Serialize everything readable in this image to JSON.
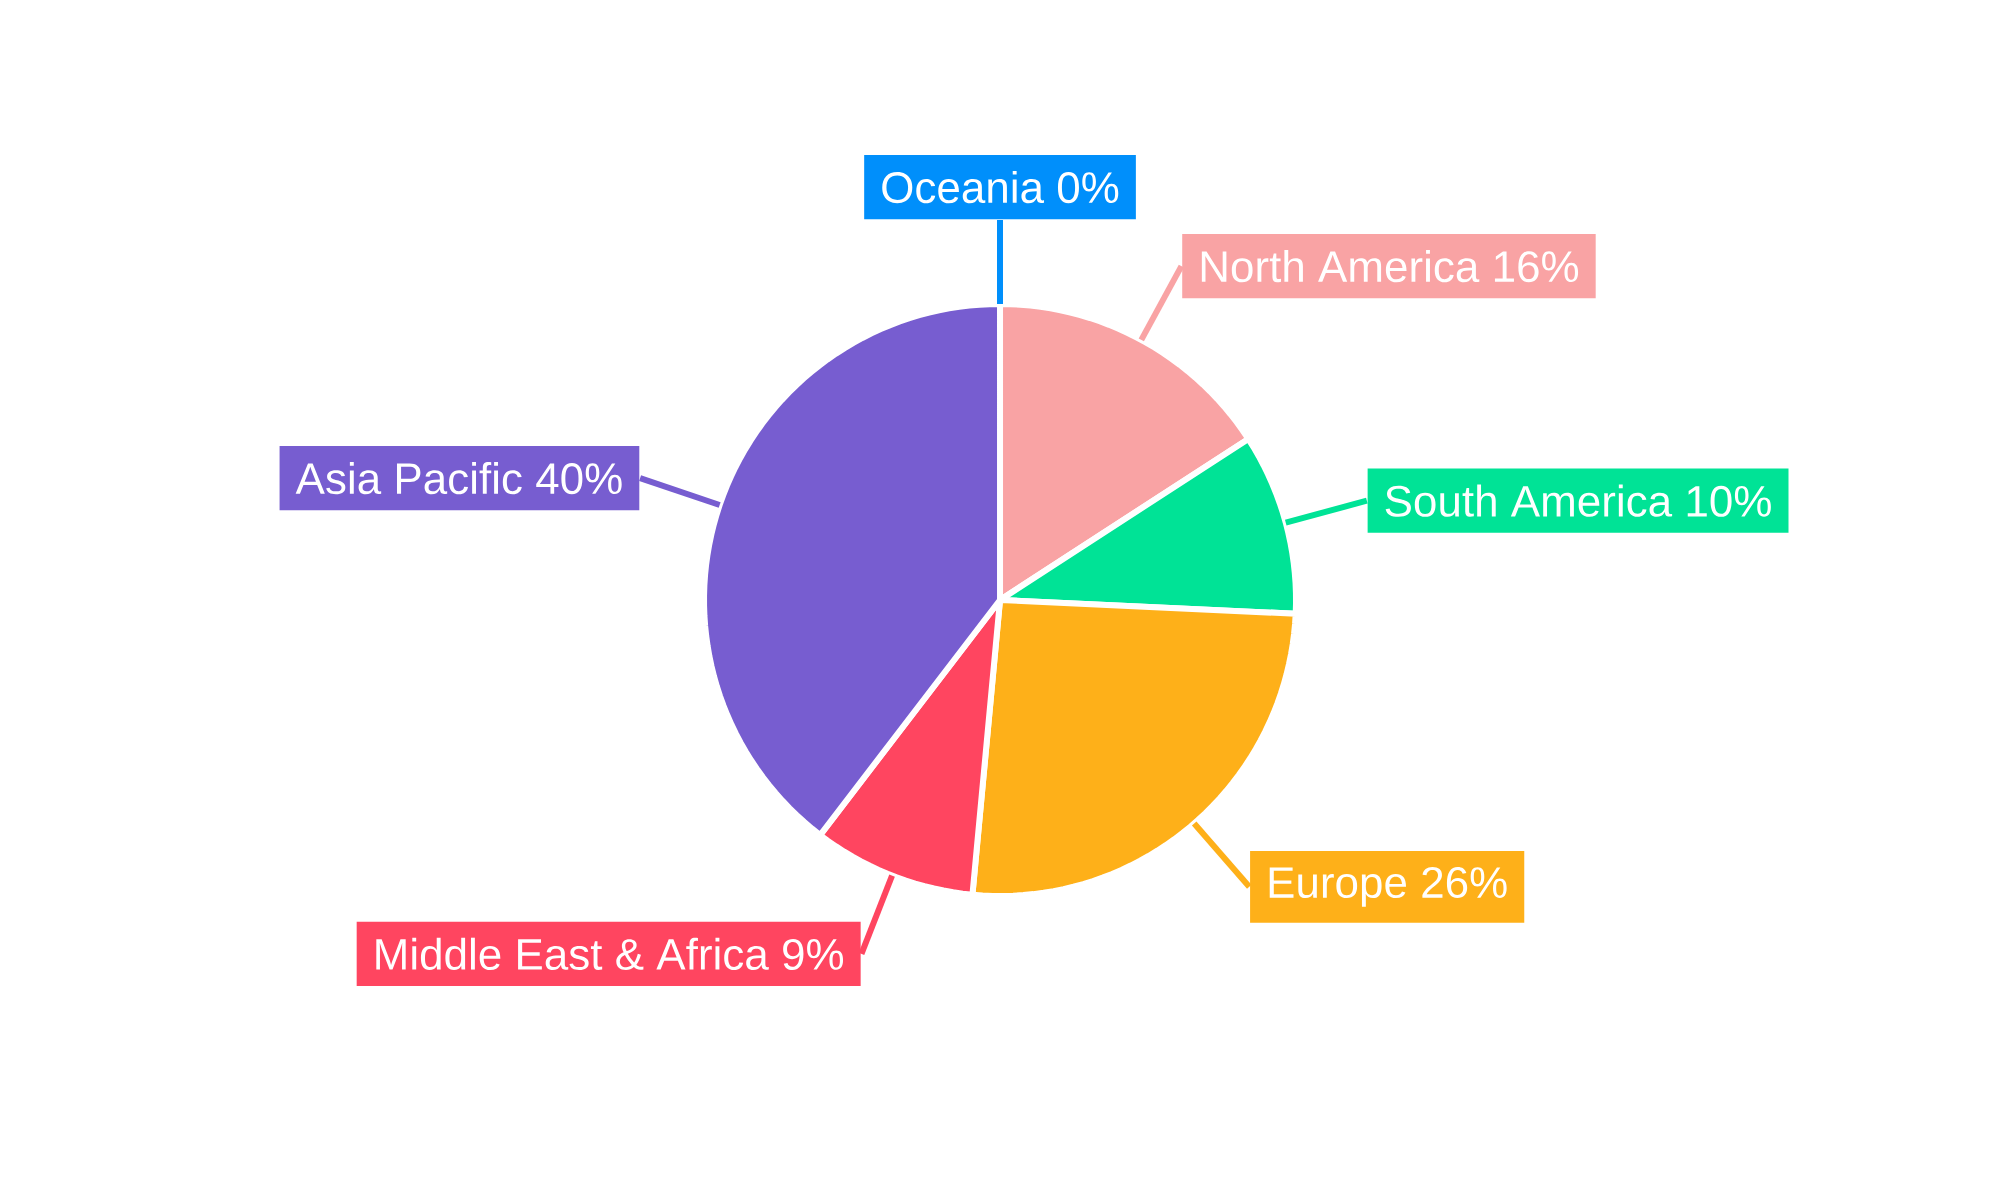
{
  "chart_data": {
    "type": "pie",
    "categories": [
      "North America",
      "South America",
      "Europe",
      "Middle East & Africa",
      "Asia Pacific",
      "Oceania"
    ],
    "values": [
      16,
      10,
      26,
      9,
      40,
      0
    ],
    "value_labels": [
      "16%",
      "10%",
      "26%",
      "9%",
      "40%",
      "0%"
    ],
    "colors": [
      "#f9a3a4",
      "#00e396",
      "#feb019",
      "#ff4560",
      "#775dd0",
      "#008ffb"
    ]
  }
}
